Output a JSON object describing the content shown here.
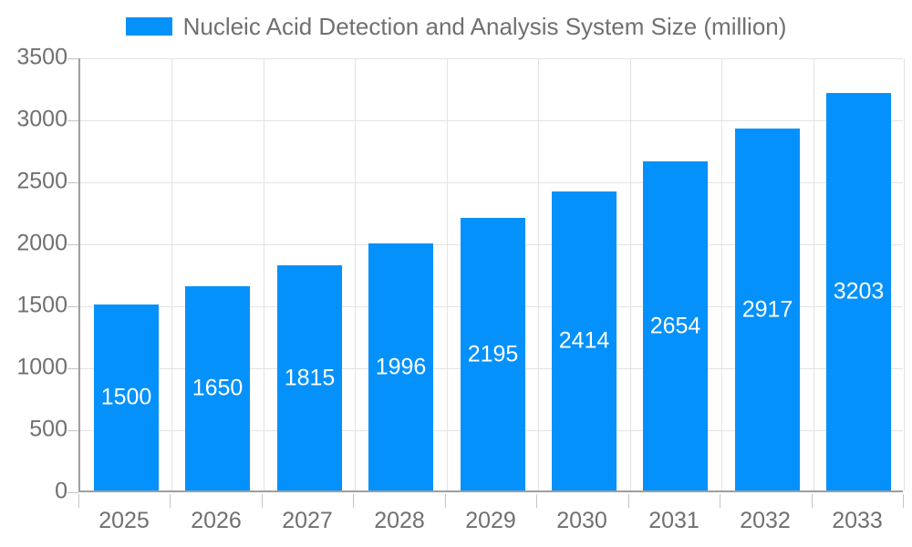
{
  "chart_data": {
    "type": "bar",
    "title": "Nucleic Acid Detection and Analysis System Size (million)",
    "categories": [
      "2025",
      "2026",
      "2027",
      "2028",
      "2029",
      "2030",
      "2031",
      "2032",
      "2033"
    ],
    "values": [
      1500,
      1650,
      1815,
      1996,
      2195,
      2414,
      2654,
      2917,
      3203
    ],
    "xlabel": "",
    "ylabel": "",
    "ylim": [
      0,
      3500
    ],
    "yticks": [
      0,
      500,
      1000,
      1500,
      2000,
      2500,
      3000,
      3500
    ],
    "grid": true,
    "legend_position": "top-center",
    "bar_label_position": "center",
    "colors": {
      "bar": "#0591fb",
      "bar_label": "#ffffff",
      "axis_text": "#707070",
      "title_text": "#707070",
      "gridline": "#e3e3e3",
      "tick": "#c4c4c4",
      "axis_line": "#9e9e9e",
      "background": "#ffffff"
    }
  }
}
